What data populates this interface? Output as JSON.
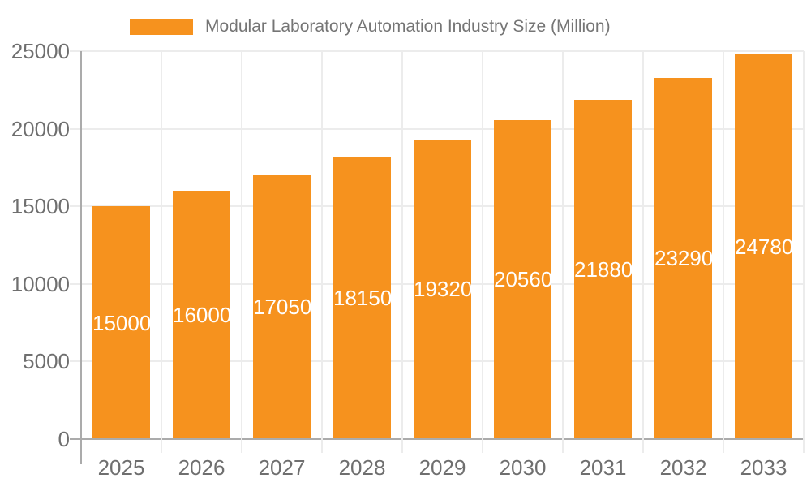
{
  "chart_data": {
    "type": "bar",
    "title": "Modular Laboratory Automation Industry Size (Million)",
    "categories": [
      "2025",
      "2026",
      "2027",
      "2028",
      "2029",
      "2030",
      "2031",
      "2032",
      "2033"
    ],
    "values": [
      15000,
      16000,
      17050,
      18150,
      19320,
      20560,
      21880,
      23290,
      24780
    ],
    "value_labels": [
      "15000",
      "16000",
      "17050",
      "18150",
      "19320",
      "20560",
      "21880",
      "23290",
      "24780"
    ],
    "xlabel": "",
    "ylabel": "",
    "ylim": [
      0,
      25000
    ],
    "yticks": [
      0,
      5000,
      10000,
      15000,
      20000,
      25000
    ],
    "ytick_labels": [
      "0",
      "5000",
      "10000",
      "15000",
      "20000",
      "25000"
    ],
    "grid": true,
    "legend_position": "top",
    "bar_color": "#F6921E",
    "value_label_color": "#FFFFFF",
    "axis_label_color": "#6F6F6F",
    "title_color": "#757575",
    "gridline_color": "#ECECEC",
    "axis_line_color": "#ABABAB"
  }
}
